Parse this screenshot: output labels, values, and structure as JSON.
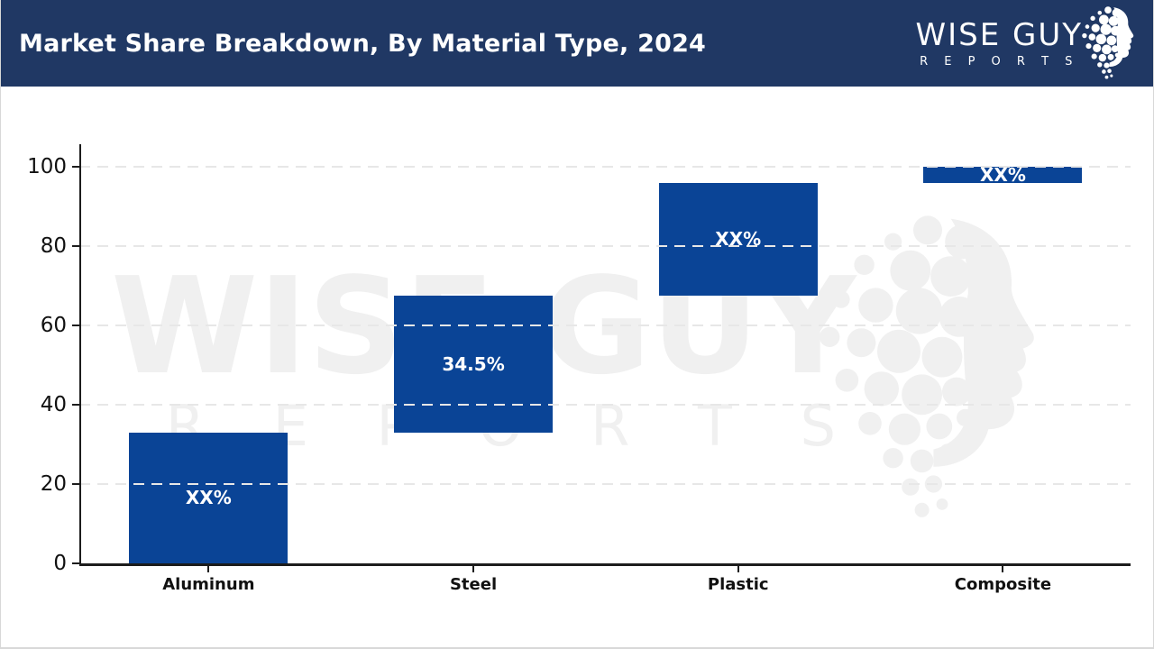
{
  "header": {
    "title": "Market Share Breakdown, By Material Type, 2024",
    "logo": {
      "wordmark": "WISE GUY",
      "subtext": "R E P O R T S"
    }
  },
  "watermark": {
    "wordmark": "WISE GUY",
    "subtext": "R E P O R T S"
  },
  "colors": {
    "header_bg": "#203864",
    "bar": "#0a4496",
    "axis": "#1c1c1c",
    "grid": "#e7e7e7",
    "watermark": "#f0f0f0",
    "bar_label_text": "#ffffff"
  },
  "chart_data": {
    "type": "bar",
    "variant": "waterfall",
    "title": "Market Share Breakdown, By Material Type, 2024",
    "categories": [
      "Aluminum",
      "Steel",
      "Plastic",
      "Composite"
    ],
    "segments": [
      {
        "category": "Aluminum",
        "start": 0,
        "end": 33,
        "label": "XX%"
      },
      {
        "category": "Steel",
        "start": 33,
        "end": 67.5,
        "label": "34.5%"
      },
      {
        "category": "Plastic",
        "start": 67.5,
        "end": 96,
        "label": "XX%"
      },
      {
        "category": "Composite",
        "start": 96,
        "end": 100,
        "label": "XX%"
      }
    ],
    "xlabel": "",
    "ylabel": "",
    "y_ticks": [
      0,
      20,
      40,
      60,
      80,
      100
    ],
    "ylim": [
      0,
      105.7
    ],
    "grid": "horizontal-dashed-over-bars",
    "legend": "none",
    "bar_color": "#0a4496"
  }
}
